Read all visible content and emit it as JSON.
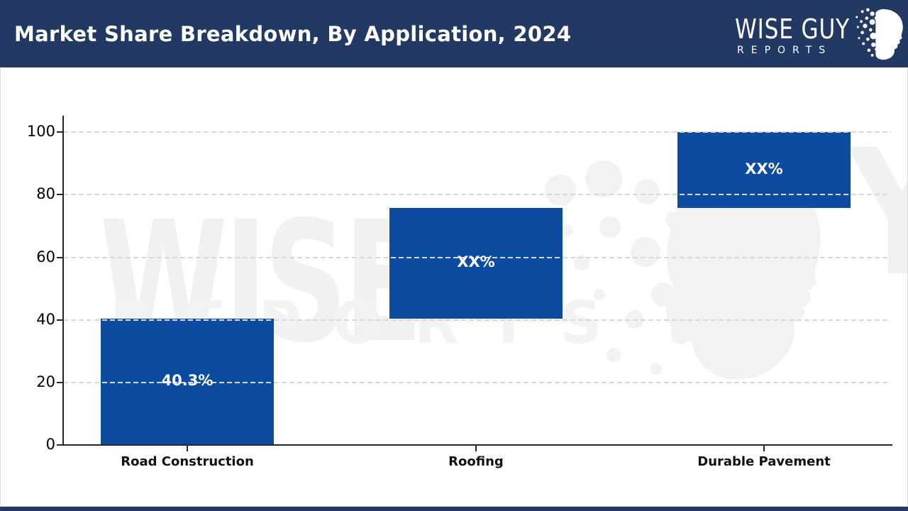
{
  "header": {
    "title": "Market Share Breakdown, By Application, 2024",
    "logo": {
      "line1": "WISE GUY",
      "line2": "REPORTS"
    }
  },
  "watermark": {
    "line1": "WISE",
    "line2": "REPORTS",
    "letter_y": "Y"
  },
  "colors": {
    "header_bg": "#223963",
    "footer_bg": "#223963",
    "bar": "#0d4ba0",
    "bar_label": "#ffffff",
    "grid": "#d8d8d8",
    "axis": "#262626",
    "watermark": "#f1f1f1"
  },
  "chart_data": {
    "type": "bar",
    "subtype": "floating-segment-bars",
    "title": "Market Share Breakdown, By Application, 2024",
    "categories": [
      "Road Construction",
      "Roofing",
      "Durable Pavement"
    ],
    "bars": [
      {
        "category": "Road Construction",
        "start": 0,
        "end": 40.3,
        "label": "40.3%"
      },
      {
        "category": "Roofing",
        "start": 40.3,
        "end": 75.7,
        "label": "XX%"
      },
      {
        "category": "Durable Pavement",
        "start": 75.7,
        "end": 100,
        "label": "XX%"
      }
    ],
    "ylabel": "",
    "xlabel": "",
    "yticks": [
      0,
      20,
      40,
      60,
      80,
      100
    ],
    "ylim": [
      0,
      105
    ],
    "grid": "horizontal-dashed-drawn-above-bars",
    "legend": "none"
  }
}
